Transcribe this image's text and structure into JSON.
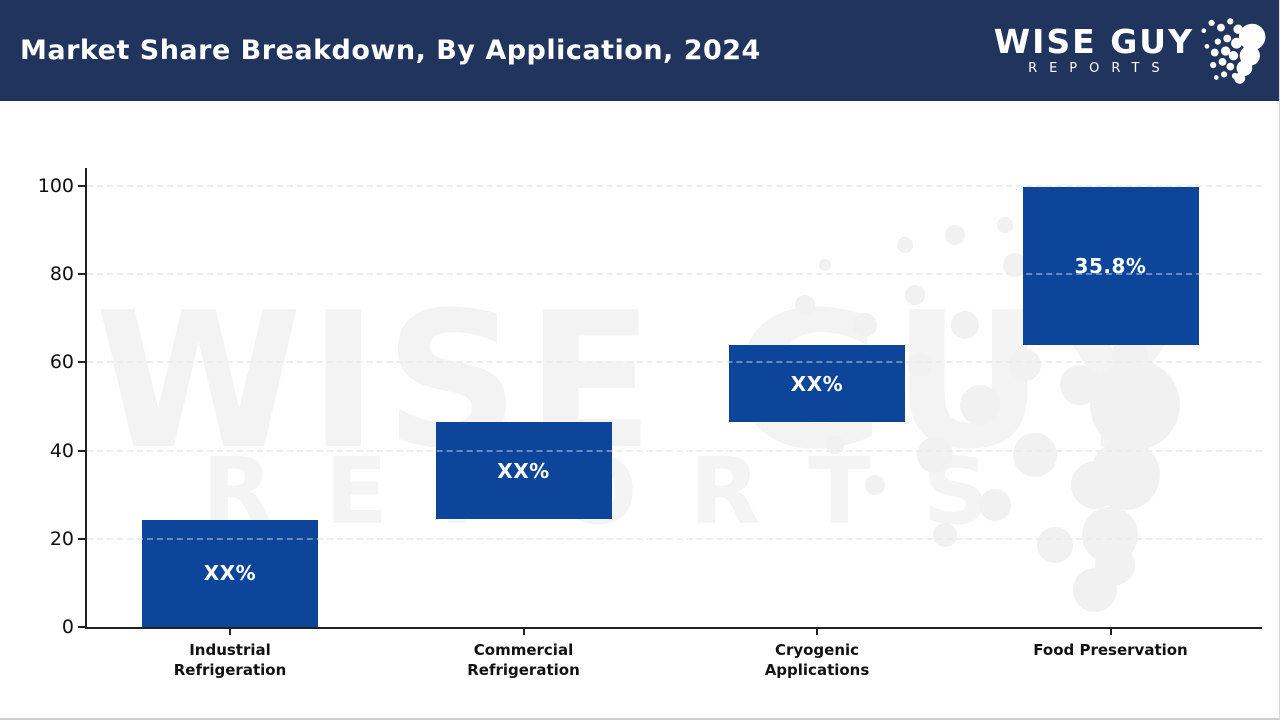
{
  "header": {
    "title": "Market Share Breakdown, By Application, 2024",
    "bg_color": "#21345e"
  },
  "logo": {
    "line1": "WISE GUY",
    "line2": "REPORTS"
  },
  "watermark": {
    "line1": "WISE GUY",
    "line2": "REPORTS"
  },
  "chart_data": {
    "type": "bar",
    "subtype": "waterfall",
    "title": "Market Share Breakdown, By Application, 2024",
    "categories": [
      [
        "Industrial",
        "Refrigeration"
      ],
      [
        "Commercial",
        "Refrigeration"
      ],
      [
        "Cryogenic",
        "Applications"
      ],
      [
        "Food Preservation"
      ]
    ],
    "segments": [
      {
        "category": "Industrial Refrigeration",
        "start": 0,
        "end": 24.3,
        "label": "XX%"
      },
      {
        "category": "Commercial Refrigeration",
        "start": 24.5,
        "end": 46.4,
        "label": "XX%"
      },
      {
        "category": "Cryogenic Applications",
        "start": 46.4,
        "end": 64.0,
        "label": "XX%"
      },
      {
        "category": "Food Preservation",
        "start": 64.0,
        "end": 99.8,
        "label": "35.8%",
        "value": 35.8
      }
    ],
    "y_ticks": [
      0,
      20,
      40,
      60,
      80,
      100
    ],
    "ylim": [
      0,
      104
    ],
    "grid": true,
    "grid_style": "dashed",
    "legend": "none",
    "bar_color": "#0c4599",
    "grid_color": "#e3e3e3",
    "axis_color": "#222222",
    "label_color": "#ffffff"
  }
}
